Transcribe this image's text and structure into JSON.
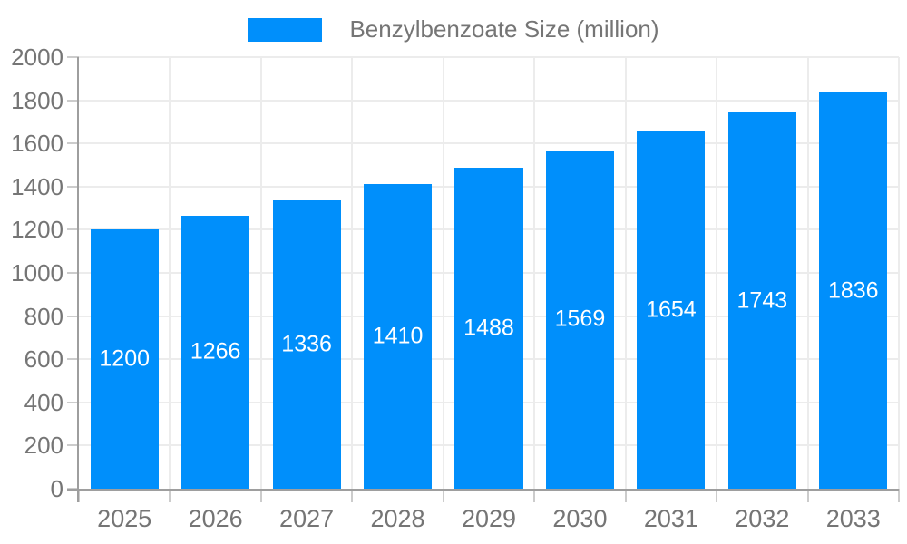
{
  "page": {
    "background": "#ffffff"
  },
  "legend": {
    "label": "Benzylbenzoate Size (million)",
    "swatch_color": "#008ffb"
  },
  "chart_data": {
    "type": "bar",
    "title": "Benzylbenzoate Size (million)",
    "series_name": "Benzylbenzoate Size (million)",
    "categories": [
      "2025",
      "2026",
      "2027",
      "2028",
      "2029",
      "2030",
      "2031",
      "2032",
      "2033"
    ],
    "values": [
      1200,
      1266,
      1336,
      1410,
      1488,
      1569,
      1654,
      1743,
      1836
    ],
    "xlabel": "",
    "ylabel": "",
    "ylim": [
      0,
      2000
    ],
    "ytick_step": 200,
    "ytick_labels": [
      "0",
      "200",
      "400",
      "600",
      "800",
      "1000",
      "1200",
      "1400",
      "1600",
      "1800",
      "2000"
    ],
    "grid": "on",
    "legend_position": "top-center",
    "bar_color": "#008ffb",
    "value_label_color": "#ffffff",
    "axis_color": "#9e9e9e",
    "grid_color": "#ececec",
    "tick_color": "#cccccc",
    "label_color": "#757575"
  }
}
